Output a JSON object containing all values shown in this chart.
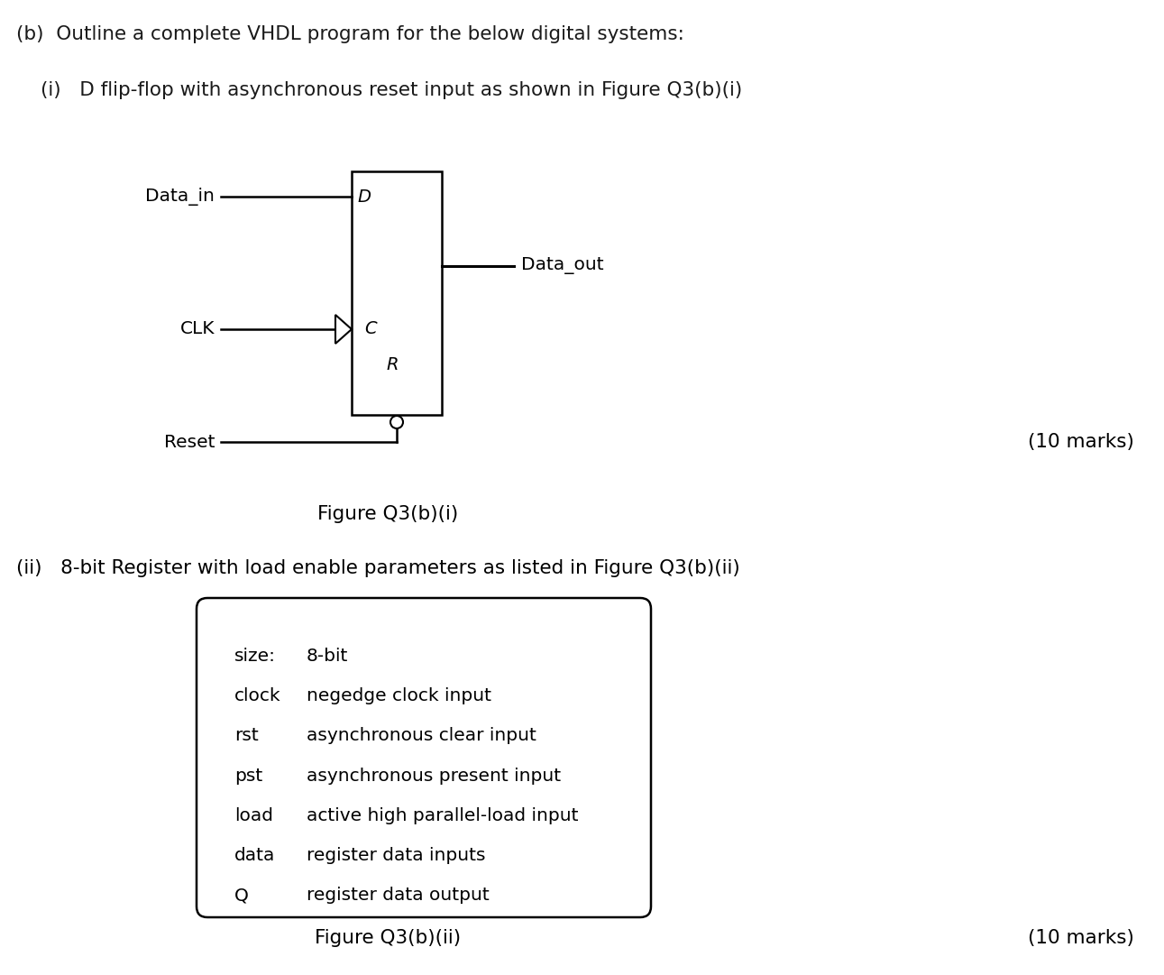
{
  "title_b": "(b)  Outline a complete VHDL program for the below digital systems:",
  "title_i": "(i)   D flip-flop with asynchronous reset input as shown in Figure Q3(b)(i)",
  "title_ii": "(ii)   8-bit Register with load enable parameters as listed in Figure Q3(b)(ii)",
  "fig_caption_i": "Figure Q3(b)(i)",
  "fig_caption_ii": "Figure Q3(b)(ii)",
  "marks_i": "(10 marks)",
  "marks_ii": "(10 marks)",
  "bg_color": "#ffffff",
  "text_color": "#1a1a1a",
  "font_size_title": 15.5,
  "font_size_label": 14.5,
  "font_size_italic": 14,
  "table_rows": [
    {
      "key": "size:",
      "val": "8-bit"
    },
    {
      "key": "clock",
      "val": "negedge clock input"
    },
    {
      "key": "rst",
      "val": "asynchronous clear input"
    },
    {
      "key": "pst",
      "val": "asynchronous present input"
    },
    {
      "key": "load",
      "val": "active high parallel-load input"
    },
    {
      "key": "data",
      "val": "register data inputs"
    },
    {
      "key": "Q",
      "val": "register data output"
    }
  ]
}
